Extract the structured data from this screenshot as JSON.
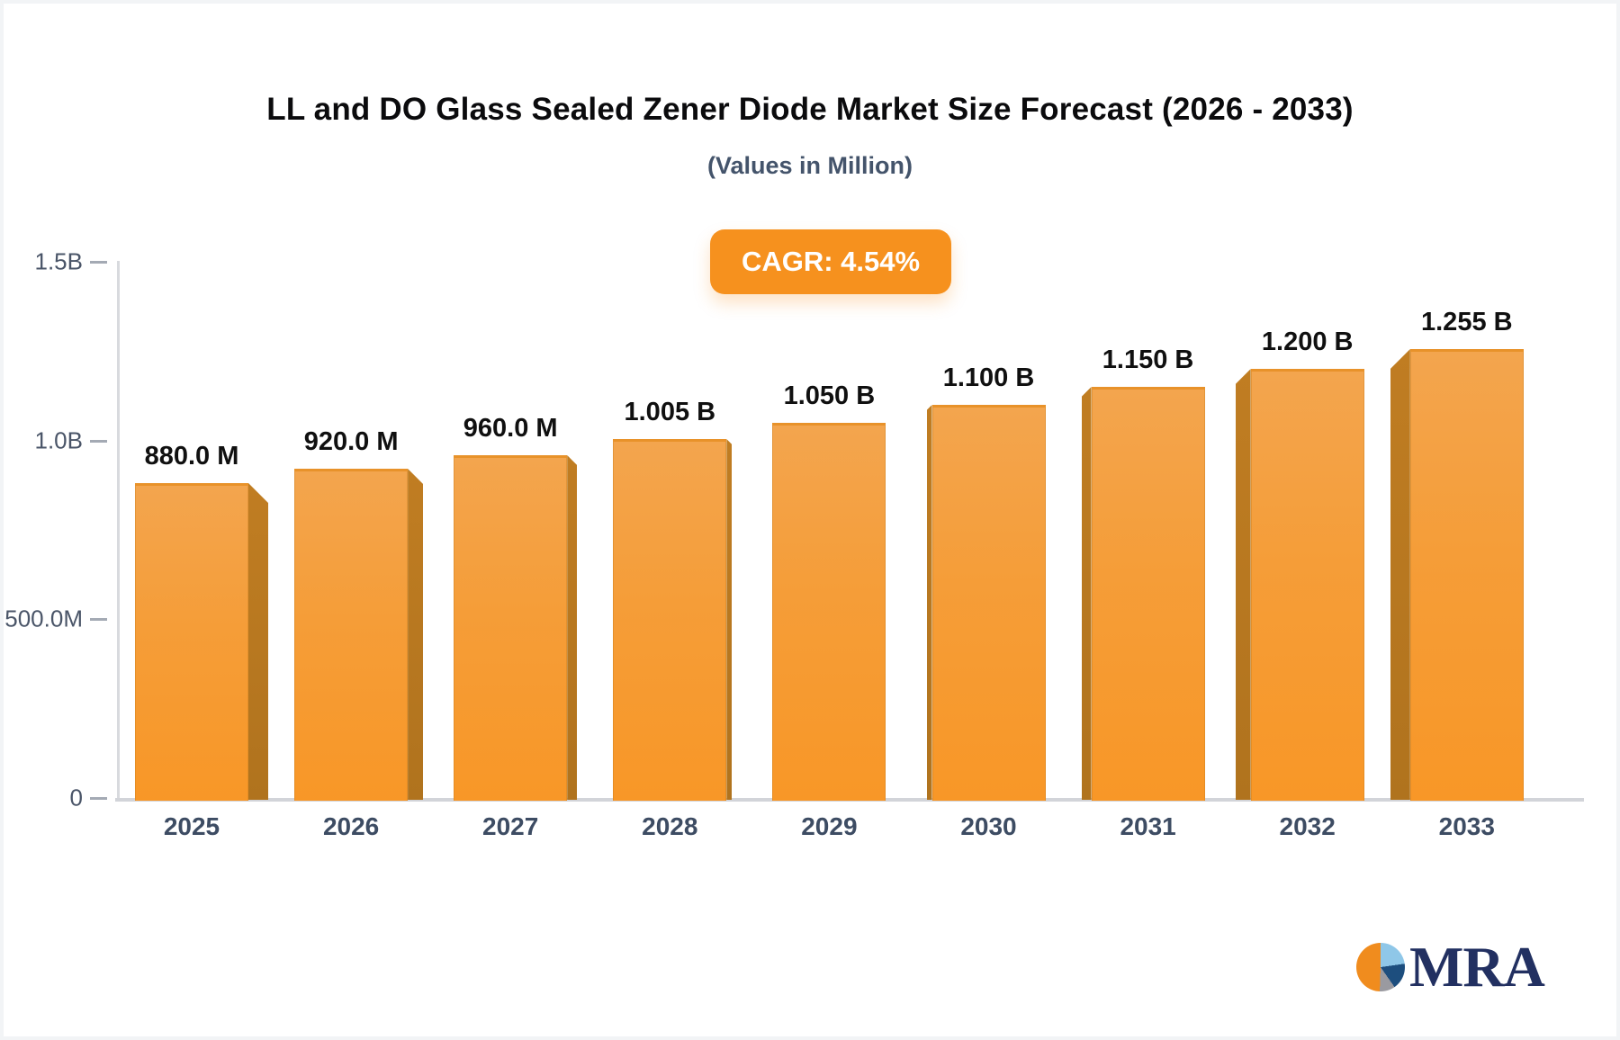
{
  "header": {
    "title": "LL and DO Glass Sealed Zener Diode Market Size Forecast (2026 - 2033)",
    "subtitle": "(Values in Million)",
    "cagr_badge": "CAGR: 4.54%"
  },
  "colors": {
    "accent_orange": "#F6911E",
    "bar_face_top": "#F3A54E",
    "bar_face_bottom": "#F89727",
    "bar_side_panel": "#B5771F",
    "bar_top_edge": "#E8922A",
    "axis_line": "#D6D8DD",
    "y_tick_text": "#4A5568",
    "x_label_text": "#3D4C63",
    "value_label_text": "#101010",
    "subtitle_text": "#44546B",
    "title_text": "#0B0B0D",
    "badge_text": "#FFFFFF",
    "logo_navy": "#223061",
    "logo_light_blue": "#8FC7E8",
    "logo_dark_blue": "#1D4E7E",
    "logo_gray": "#9A9AA0",
    "logo_orange": "#F08C1E"
  },
  "chart_data": {
    "type": "bar",
    "title": "LL and DO Glass Sealed Zener Diode Market Size Forecast (2026 - 2033)",
    "subtitle": "(Values in Million)",
    "cagr": "4.54%",
    "categories": [
      "2025",
      "2026",
      "2027",
      "2028",
      "2029",
      "2030",
      "2031",
      "2032",
      "2033"
    ],
    "values_millions": [
      880,
      920,
      960,
      1005,
      1050,
      1100,
      1150,
      1200,
      1255
    ],
    "value_labels": [
      "880.0 M",
      "920.0 M",
      "960.0 M",
      "1.005 B",
      "1.050 B",
      "1.100 B",
      "1.150 B",
      "1.200 B",
      "1.255 B"
    ],
    "xlabel": "",
    "ylabel": "",
    "ylim_millions": [
      0,
      1500
    ],
    "y_ticks": [
      {
        "label": "1.5B",
        "value_millions": 1500
      },
      {
        "label": "1.0B",
        "value_millions": 1000
      },
      {
        "label": "500.0M",
        "value_millions": 500
      },
      {
        "label": "0",
        "value_millions": 0
      }
    ],
    "grid": false,
    "legend_position": "none",
    "bar_style": "3d-perspective-orange"
  },
  "logo": {
    "text": "MRA",
    "icon": "pie-chart-logo-icon"
  }
}
